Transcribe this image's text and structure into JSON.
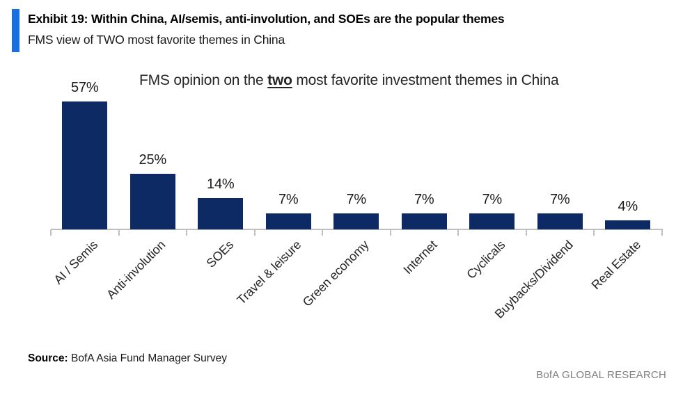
{
  "header": {
    "exhibit_title": "Exhibit 19: Within China, AI/semis, anti-involution, and SOEs are the popular themes",
    "subtitle": "FMS view of TWO most favorite themes in China",
    "accent_color": "#1a6fdf"
  },
  "chart": {
    "title_prefix": "FMS opinion on the ",
    "title_underlined": "two",
    "title_suffix": " most favorite investment themes in China"
  },
  "chart_data": {
    "type": "bar",
    "title": "FMS opinion on the two most favorite investment themes in China",
    "categories": [
      "AI / Semis",
      "Anti-involution",
      "SOEs",
      "Travel & leisure",
      "Green economy",
      "Internet",
      "Cyclicals",
      "Buybacks/Dividend",
      "Real Estate"
    ],
    "values": [
      57,
      25,
      14,
      7,
      7,
      7,
      7,
      7,
      4
    ],
    "value_labels": [
      "57%",
      "25%",
      "14%",
      "7%",
      "7%",
      "7%",
      "7%",
      "7%",
      "4%"
    ],
    "xlabel": "",
    "ylabel": "",
    "ylim": [
      0,
      60
    ],
    "grid": false,
    "legend": false,
    "bar_color": "#0e2a64",
    "axis_color": "#bfbfbf",
    "label_rotation_deg": -45
  },
  "footer": {
    "source_label": "Source:",
    "source_text": " BofA Asia Fund Manager Survey",
    "brand": "BofA GLOBAL RESEARCH"
  }
}
